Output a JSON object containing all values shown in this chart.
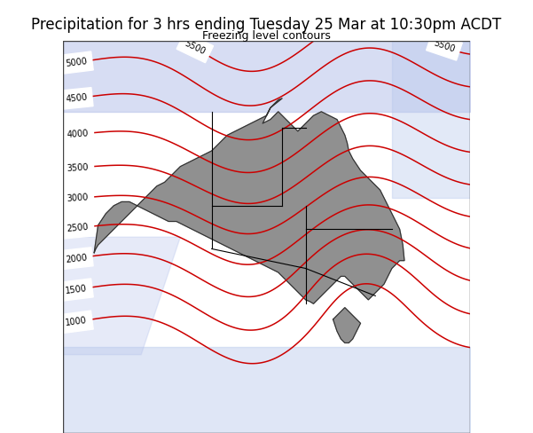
{
  "title": "Precipitation for 3 hrs ending Tuesday 25 Mar at 10:30pm ACDT",
  "subtitle": "Freezing level contours",
  "title_fontsize": 12,
  "subtitle_fontsize": 9,
  "background_color": "#ffffff",
  "ocean_color": "#c8cfe8",
  "land_color": "#909090",
  "land_edge_color": "#303030",
  "contour_color": "#cc0000",
  "contour_label_fontsize": 7,
  "contour_levels": [
    1000,
    1500,
    2000,
    2500,
    3000,
    3500,
    4000,
    4500,
    5000,
    5500
  ],
  "fig_width": 6.01,
  "fig_height": 4.88,
  "dpi": 100,
  "xlim": [
    110,
    162
  ],
  "ylim": [
    -55,
    -5
  ]
}
